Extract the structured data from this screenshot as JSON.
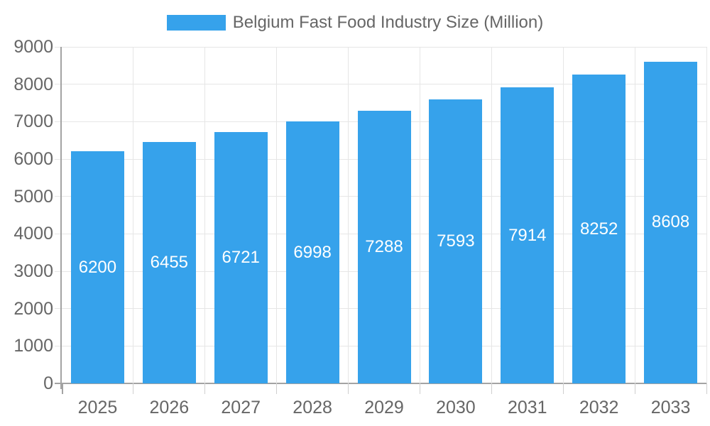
{
  "legend": {
    "label": "Belgium Fast Food Industry Size (Million)"
  },
  "chart_data": {
    "type": "bar",
    "title": "Belgium Fast Food Industry Size (Million)",
    "categories": [
      "2025",
      "2026",
      "2027",
      "2028",
      "2029",
      "2030",
      "2031",
      "2032",
      "2033"
    ],
    "series": [
      {
        "name": "Belgium Fast Food Industry Size (Million)",
        "values": [
          6200,
          6455,
          6721,
          6998,
          7288,
          7593,
          7914,
          8252,
          8608
        ]
      }
    ],
    "bar_labels": [
      "6200",
      "6455",
      "6721",
      "6998",
      "7288",
      "7593",
      "7914",
      "8252",
      "8608"
    ],
    "xlabel": "",
    "ylabel": "",
    "ylim": [
      0,
      9000
    ],
    "ytick_step": 1000,
    "yticks": [
      0,
      1000,
      2000,
      3000,
      4000,
      5000,
      6000,
      7000,
      8000,
      9000
    ],
    "grid": true,
    "legend_position": "top",
    "colors": {
      "bar": "#36A2EB",
      "bar_label": "#FFFFFF",
      "tick_label": "#666666",
      "legend_label": "#666666",
      "gridline": "#E6E6E6",
      "tick_mark": "#CFCFCF",
      "axis_line": "#A3A3A3",
      "background": "#FFFFFF"
    }
  }
}
